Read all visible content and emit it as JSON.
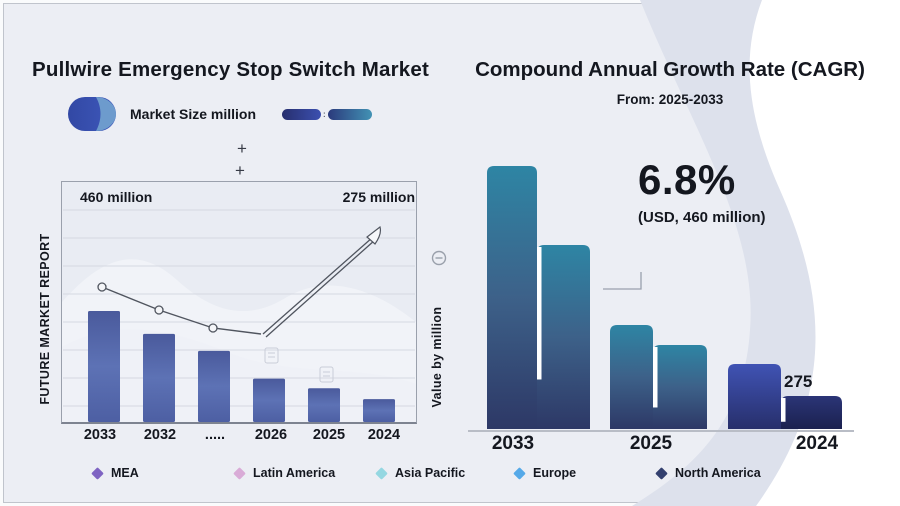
{
  "header": {
    "title_left": "Pullwire Emergency Stop Switch Market",
    "title_right": "Compound Annual Growth Rate (CAGR)",
    "subtitle_right": "From: 2025-2033"
  },
  "market_size_legend": {
    "label": "Market Size million",
    "icon": "cylinder-3d-icon",
    "pill_separator": ":",
    "pill1_colors": [
      "#272f6e",
      "#3c50b0"
    ],
    "pill2_colors": [
      "#2b3a7c",
      "#4292b4"
    ]
  },
  "left_panel": {
    "side_label": "FUTURE MARKET REPORT",
    "ylabel": "Value by million",
    "annotation_left": "460 million",
    "annotation_right": "275 million",
    "plus_glyph": "+"
  },
  "cagr": {
    "value": "6.8%",
    "note": "(USD, 460 million)",
    "bar_annotation": "275"
  },
  "chart_data": [
    {
      "type": "bar",
      "title": "Pullwire Emergency Stop Switch Market",
      "unit": "million",
      "ylabel": "Value by million",
      "categories": [
        "2033",
        "2032",
        ".....",
        "2026",
        "2025",
        "2024"
      ],
      "values": [
        460,
        365,
        295,
        180,
        140,
        95
      ],
      "annotations": [
        "460 million",
        "275 million"
      ],
      "bar_color_top": "#4a5a9c",
      "bar_color_mid": "#5d72b5",
      "bar_color_bottom": "#4d5fa3",
      "trend_line": {
        "points": [
          [
            40,
            105
          ],
          [
            97,
            128
          ],
          [
            151,
            146
          ],
          [
            199,
            152
          ]
        ],
        "arrow_to": [
          314,
          52
        ],
        "color": "#50555f"
      },
      "grid": true,
      "legend_position": "top"
    },
    {
      "type": "bar",
      "title": "Compound Annual Growth Rate (CAGR)",
      "subtitle": "From: 2025-2033",
      "cagr": "6.8%",
      "cagr_note": "(USD, 460 million)",
      "categories": [
        "2033",
        "2025",
        "2024"
      ],
      "series": [
        {
          "name": "series-1",
          "relative_values": [
            263,
            104,
            65
          ]
        },
        {
          "name": "series-2",
          "relative_values": [
            184,
            84,
            33
          ]
        }
      ],
      "annotation": "275",
      "colors": {
        "teal_top": "#2e85a4",
        "teal_mid": "#3d6189",
        "navy_bottom": "#2d3866",
        "blue_top": "#4053b4",
        "blue_bottom": "#272f6b",
        "darknavy_top": "#2b3577",
        "darknavy_bottom": "#1b214f"
      },
      "grid": false,
      "legend_position": "none"
    }
  ],
  "region_legend": {
    "items": [
      {
        "label": "MEA",
        "color": "#7e63c2"
      },
      {
        "label": "Latin America",
        "color": "#d9abd7"
      },
      {
        "label": "Asia Pacific",
        "color": "#94d7e1"
      },
      {
        "label": "Europe",
        "color": "#55a9e8"
      },
      {
        "label": "North America",
        "color": "#33406f"
      }
    ]
  },
  "icons": {
    "zoom_out": "minus-in-circle"
  }
}
